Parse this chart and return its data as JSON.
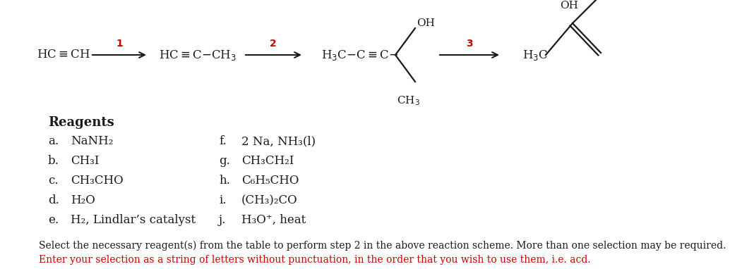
{
  "bg_color": "#ffffff",
  "figsize": [
    10.68,
    3.82
  ],
  "dpi": 100,
  "fs": 12,
  "fs_small": 10,
  "red_color": "#cc0000",
  "black_color": "#1a1a1a",
  "reagents_title": "Reagents",
  "reagents_left": [
    [
      "a.",
      "NaNH₂"
    ],
    [
      "b.",
      "CH₃I"
    ],
    [
      "c.",
      "CH₃CHO"
    ],
    [
      "d.",
      "H₂O"
    ],
    [
      "e.",
      "H₂, Lindlar’s catalyst"
    ]
  ],
  "reagents_right": [
    [
      "f.",
      "2 Na, NH₃(l)"
    ],
    [
      "g.",
      "CH₃CH₂I"
    ],
    [
      "h.",
      "C₆H₅CHO"
    ],
    [
      "i.",
      "(CH₃)₂CO"
    ],
    [
      "j.",
      "H₃O⁺, heat"
    ]
  ],
  "footer_black": "Select the necessary reagent(s) from the table to perform step 2 in the above reaction scheme. More than one selection may be required.",
  "footer_red": "Enter your selection as a string of letters without punctuation, in the order that you wish to use them, i.e. acd."
}
